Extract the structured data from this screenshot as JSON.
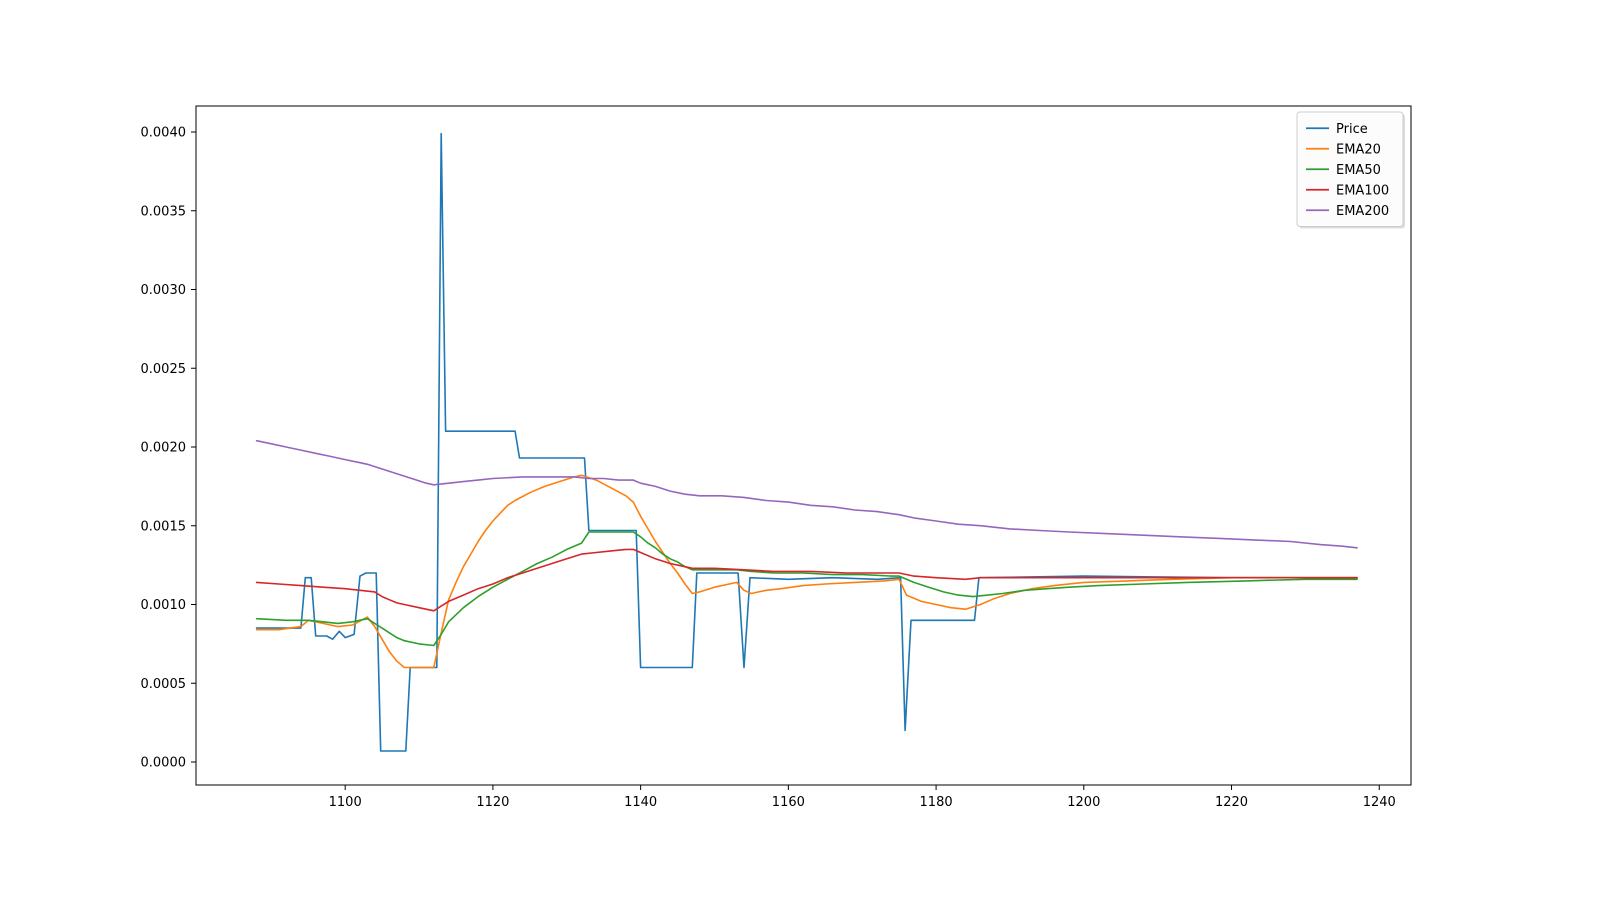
{
  "chart_data": {
    "type": "line",
    "title": "",
    "xlabel": "",
    "ylabel": "",
    "grid": false,
    "legend_position": "upper right",
    "xlim": [
      1079.8,
      1244.3
    ],
    "ylim": [
      -0.000146,
      0.004165
    ],
    "x_ticks": [
      1100,
      1120,
      1140,
      1160,
      1180,
      1200,
      1220,
      1240
    ],
    "x_tick_labels": [
      "1100",
      "1120",
      "1140",
      "1160",
      "1180",
      "1200",
      "1220",
      "1240"
    ],
    "y_ticks": [
      0.0,
      0.0005,
      0.001,
      0.0015,
      0.002,
      0.0025,
      0.003,
      0.0035,
      0.004
    ],
    "y_tick_labels": [
      "0.0000",
      "0.0005",
      "0.0010",
      "0.0015",
      "0.0020",
      "0.0025",
      "0.0030",
      "0.0035",
      "0.0040"
    ],
    "series": [
      {
        "name": "Price",
        "color": "#1f77b4",
        "points": [
          [
            1088,
            0.00085
          ],
          [
            1094,
            0.00085
          ],
          [
            1094.6,
            0.00117
          ],
          [
            1095.4,
            0.00117
          ],
          [
            1096,
            0.0008
          ],
          [
            1097.5,
            0.0008
          ],
          [
            1098.3,
            0.00078
          ],
          [
            1099.2,
            0.00083
          ],
          [
            1100,
            0.00079
          ],
          [
            1101.2,
            0.00081
          ],
          [
            1102,
            0.00118
          ],
          [
            1102.8,
            0.0012
          ],
          [
            1104.2,
            0.0012
          ],
          [
            1104.8,
            7e-05
          ],
          [
            1108.2,
            7e-05
          ],
          [
            1108.8,
            0.0006
          ],
          [
            1112.4,
            0.0006
          ],
          [
            1113,
            0.00399
          ],
          [
            1113.6,
            0.0021
          ],
          [
            1123,
            0.0021
          ],
          [
            1123.6,
            0.00193
          ],
          [
            1132.4,
            0.00193
          ],
          [
            1133,
            0.00147
          ],
          [
            1139.4,
            0.00147
          ],
          [
            1140,
            0.0006
          ],
          [
            1147,
            0.0006
          ],
          [
            1147.6,
            0.0012
          ],
          [
            1153.2,
            0.0012
          ],
          [
            1154,
            0.0006
          ],
          [
            1154.8,
            0.00117
          ],
          [
            1160,
            0.00116
          ],
          [
            1166,
            0.00117
          ],
          [
            1172,
            0.00116
          ],
          [
            1175.2,
            0.00117
          ],
          [
            1175.8,
            0.0002
          ],
          [
            1176.6,
            0.0009
          ],
          [
            1185.2,
            0.0009
          ],
          [
            1185.8,
            0.00117
          ],
          [
            1200,
            0.00118
          ],
          [
            1220,
            0.00117
          ],
          [
            1237,
            0.00117
          ]
        ]
      },
      {
        "name": "EMA20",
        "color": "#ff7f0e",
        "points": [
          [
            1088,
            0.00084
          ],
          [
            1091,
            0.00084
          ],
          [
            1094,
            0.00086
          ],
          [
            1095,
            0.0009
          ],
          [
            1097,
            0.00088
          ],
          [
            1099,
            0.00086
          ],
          [
            1101,
            0.00087
          ],
          [
            1103,
            0.00092
          ],
          [
            1104,
            0.00086
          ],
          [
            1105,
            0.00078
          ],
          [
            1106,
            0.0007
          ],
          [
            1107,
            0.00064
          ],
          [
            1108,
            0.0006
          ],
          [
            1110,
            0.0006
          ],
          [
            1112,
            0.0006
          ],
          [
            1113,
            0.00082
          ],
          [
            1114,
            0.00103
          ],
          [
            1115,
            0.00114
          ],
          [
            1116,
            0.00124
          ],
          [
            1117,
            0.00132
          ],
          [
            1118,
            0.0014
          ],
          [
            1119,
            0.00147
          ],
          [
            1120,
            0.00153
          ],
          [
            1121,
            0.00158
          ],
          [
            1122,
            0.00163
          ],
          [
            1123,
            0.00166
          ],
          [
            1125,
            0.00171
          ],
          [
            1127,
            0.00175
          ],
          [
            1129,
            0.00178
          ],
          [
            1131,
            0.00181
          ],
          [
            1132,
            0.00182
          ],
          [
            1134,
            0.00179
          ],
          [
            1136,
            0.00174
          ],
          [
            1138,
            0.00169
          ],
          [
            1139,
            0.00165
          ],
          [
            1140,
            0.00156
          ],
          [
            1141,
            0.00148
          ],
          [
            1142,
            0.0014
          ],
          [
            1143,
            0.00133
          ],
          [
            1144,
            0.00126
          ],
          [
            1145,
            0.0012
          ],
          [
            1146,
            0.00113
          ],
          [
            1147,
            0.00107
          ],
          [
            1148,
            0.00108
          ],
          [
            1150,
            0.00111
          ],
          [
            1152,
            0.00113
          ],
          [
            1153,
            0.00114
          ],
          [
            1154,
            0.00109
          ],
          [
            1155,
            0.00107
          ],
          [
            1157,
            0.00109
          ],
          [
            1159,
            0.0011
          ],
          [
            1162,
            0.00112
          ],
          [
            1165,
            0.00113
          ],
          [
            1169,
            0.00114
          ],
          [
            1173,
            0.00115
          ],
          [
            1175,
            0.00116
          ],
          [
            1176,
            0.00106
          ],
          [
            1178,
            0.00102
          ],
          [
            1180,
            0.001
          ],
          [
            1182,
            0.00098
          ],
          [
            1184,
            0.00097
          ],
          [
            1186,
            0.001
          ],
          [
            1188,
            0.00104
          ],
          [
            1190,
            0.00107
          ],
          [
            1193,
            0.0011
          ],
          [
            1196,
            0.00112
          ],
          [
            1200,
            0.00114
          ],
          [
            1206,
            0.00115
          ],
          [
            1212,
            0.00116
          ],
          [
            1220,
            0.00117
          ],
          [
            1237,
            0.00117
          ]
        ]
      },
      {
        "name": "EMA50",
        "color": "#2ca02c",
        "points": [
          [
            1088,
            0.00091
          ],
          [
            1092,
            0.0009
          ],
          [
            1095,
            0.0009
          ],
          [
            1097,
            0.00089
          ],
          [
            1099,
            0.00088
          ],
          [
            1101,
            0.00089
          ],
          [
            1103,
            0.00091
          ],
          [
            1104,
            0.00088
          ],
          [
            1105,
            0.00085
          ],
          [
            1106,
            0.00082
          ],
          [
            1107,
            0.00079
          ],
          [
            1108,
            0.00077
          ],
          [
            1110,
            0.00075
          ],
          [
            1112,
            0.00074
          ],
          [
            1113,
            0.00081
          ],
          [
            1114,
            0.00089
          ],
          [
            1116,
            0.00098
          ],
          [
            1118,
            0.00105
          ],
          [
            1120,
            0.00111
          ],
          [
            1122,
            0.00116
          ],
          [
            1124,
            0.00121
          ],
          [
            1126,
            0.00126
          ],
          [
            1128,
            0.0013
          ],
          [
            1130,
            0.00135
          ],
          [
            1132,
            0.00139
          ],
          [
            1133,
            0.00146
          ],
          [
            1136,
            0.00146
          ],
          [
            1139,
            0.00146
          ],
          [
            1140,
            0.00143
          ],
          [
            1141,
            0.00139
          ],
          [
            1142,
            0.00136
          ],
          [
            1143,
            0.00132
          ],
          [
            1144,
            0.00129
          ],
          [
            1145,
            0.00127
          ],
          [
            1146,
            0.00124
          ],
          [
            1147,
            0.00122
          ],
          [
            1150,
            0.00122
          ],
          [
            1153,
            0.00122
          ],
          [
            1155,
            0.00121
          ],
          [
            1158,
            0.0012
          ],
          [
            1162,
            0.0012
          ],
          [
            1166,
            0.00119
          ],
          [
            1170,
            0.00119
          ],
          [
            1174,
            0.00118
          ],
          [
            1175,
            0.00118
          ],
          [
            1177,
            0.00114
          ],
          [
            1179,
            0.00111
          ],
          [
            1181,
            0.00108
          ],
          [
            1183,
            0.00106
          ],
          [
            1185,
            0.00105
          ],
          [
            1187,
            0.00106
          ],
          [
            1189,
            0.00107
          ],
          [
            1192,
            0.00109
          ],
          [
            1195,
            0.0011
          ],
          [
            1198,
            0.00111
          ],
          [
            1202,
            0.00112
          ],
          [
            1208,
            0.00113
          ],
          [
            1214,
            0.00114
          ],
          [
            1222,
            0.00115
          ],
          [
            1230,
            0.00116
          ],
          [
            1237,
            0.00116
          ]
        ]
      },
      {
        "name": "EMA100",
        "color": "#d62728",
        "points": [
          [
            1088,
            0.00114
          ],
          [
            1091,
            0.00113
          ],
          [
            1094,
            0.00112
          ],
          [
            1097,
            0.00111
          ],
          [
            1100,
            0.0011
          ],
          [
            1102,
            0.00109
          ],
          [
            1104,
            0.00108
          ],
          [
            1105,
            0.00105
          ],
          [
            1106,
            0.00103
          ],
          [
            1107,
            0.00101
          ],
          [
            1108,
            0.001
          ],
          [
            1110,
            0.00098
          ],
          [
            1112,
            0.00096
          ],
          [
            1113,
            0.00099
          ],
          [
            1114,
            0.00102
          ],
          [
            1116,
            0.00106
          ],
          [
            1118,
            0.0011
          ],
          [
            1120,
            0.00113
          ],
          [
            1122,
            0.00117
          ],
          [
            1124,
            0.0012
          ],
          [
            1126,
            0.00123
          ],
          [
            1128,
            0.00126
          ],
          [
            1130,
            0.00129
          ],
          [
            1132,
            0.00132
          ],
          [
            1134,
            0.00133
          ],
          [
            1136,
            0.00134
          ],
          [
            1138,
            0.00135
          ],
          [
            1139,
            0.00135
          ],
          [
            1140,
            0.00133
          ],
          [
            1142,
            0.00129
          ],
          [
            1144,
            0.00126
          ],
          [
            1146,
            0.00124
          ],
          [
            1147,
            0.00123
          ],
          [
            1150,
            0.00123
          ],
          [
            1154,
            0.00122
          ],
          [
            1158,
            0.00121
          ],
          [
            1163,
            0.00121
          ],
          [
            1168,
            0.0012
          ],
          [
            1172,
            0.0012
          ],
          [
            1175,
            0.0012
          ],
          [
            1177,
            0.00118
          ],
          [
            1180,
            0.00117
          ],
          [
            1184,
            0.00116
          ],
          [
            1186,
            0.00117
          ],
          [
            1192,
            0.00117
          ],
          [
            1200,
            0.00117
          ],
          [
            1215,
            0.00117
          ],
          [
            1230,
            0.00117
          ],
          [
            1237,
            0.00117
          ]
        ]
      },
      {
        "name": "EMA200",
        "color": "#9467bd",
        "points": [
          [
            1088,
            0.00204
          ],
          [
            1090,
            0.00202
          ],
          [
            1092,
            0.002
          ],
          [
            1094,
            0.00198
          ],
          [
            1096,
            0.00196
          ],
          [
            1098,
            0.00194
          ],
          [
            1100,
            0.00192
          ],
          [
            1102,
            0.0019
          ],
          [
            1103,
            0.00189
          ],
          [
            1105,
            0.00186
          ],
          [
            1107,
            0.00183
          ],
          [
            1109,
            0.0018
          ],
          [
            1111,
            0.00177
          ],
          [
            1112,
            0.00176
          ],
          [
            1114,
            0.00177
          ],
          [
            1116,
            0.00178
          ],
          [
            1118,
            0.00179
          ],
          [
            1120,
            0.0018
          ],
          [
            1124,
            0.00181
          ],
          [
            1128,
            0.00181
          ],
          [
            1131,
            0.00181
          ],
          [
            1133,
            0.0018
          ],
          [
            1135,
            0.0018
          ],
          [
            1137,
            0.00179
          ],
          [
            1139,
            0.00179
          ],
          [
            1140,
            0.00177
          ],
          [
            1142,
            0.00175
          ],
          [
            1144,
            0.00172
          ],
          [
            1146,
            0.0017
          ],
          [
            1148,
            0.00169
          ],
          [
            1151,
            0.00169
          ],
          [
            1154,
            0.00168
          ],
          [
            1157,
            0.00166
          ],
          [
            1160,
            0.00165
          ],
          [
            1163,
            0.00163
          ],
          [
            1166,
            0.00162
          ],
          [
            1169,
            0.0016
          ],
          [
            1172,
            0.00159
          ],
          [
            1175,
            0.00157
          ],
          [
            1177,
            0.00155
          ],
          [
            1180,
            0.00153
          ],
          [
            1183,
            0.00151
          ],
          [
            1186,
            0.0015
          ],
          [
            1190,
            0.00148
          ],
          [
            1194,
            0.00147
          ],
          [
            1198,
            0.00146
          ],
          [
            1203,
            0.00145
          ],
          [
            1208,
            0.00144
          ],
          [
            1213,
            0.00143
          ],
          [
            1218,
            0.00142
          ],
          [
            1223,
            0.00141
          ],
          [
            1228,
            0.0014
          ],
          [
            1232,
            0.00138
          ],
          [
            1235,
            0.00137
          ],
          [
            1237,
            0.00136
          ]
        ]
      }
    ]
  }
}
